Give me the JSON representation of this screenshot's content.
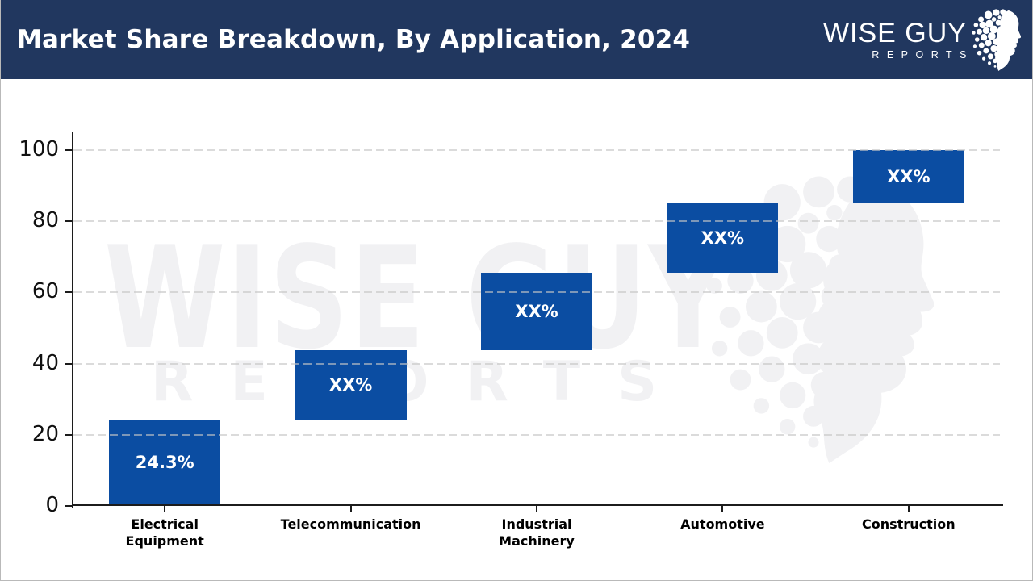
{
  "header": {
    "title": "Market Share Breakdown, By Application, 2024",
    "logo": {
      "brand": "WISE GUY",
      "sub": "REPORTS"
    }
  },
  "watermark": {
    "brand": "WISE GUY",
    "sub": "REPORTS"
  },
  "colors": {
    "header_bg": "#21375f",
    "bar": "#0b4da2",
    "axis": "#1c1c1c",
    "grid": "#dcdcdc",
    "value_label": "#ffffff",
    "watermark": "#f1f1f3"
  },
  "chart_data": {
    "type": "bar",
    "subtype": "floating-segment-waterfall",
    "title": "Market Share Breakdown, By Application, 2024",
    "categories": [
      "Electrical Equipment",
      "Telecommunication",
      "Industrial Machinery",
      "Automotive",
      "Construction"
    ],
    "category_tick_lines": [
      [
        "Electrical",
        "Equipment"
      ],
      [
        "Telecommunication"
      ],
      [
        "Industrial",
        "Machinery"
      ],
      [
        "Automotive"
      ],
      [
        "Construction"
      ]
    ],
    "series": [
      {
        "name": "Market share (%)",
        "segments": [
          {
            "category": "Electrical Equipment",
            "start": 0,
            "end": 24.3,
            "label": "24.3%"
          },
          {
            "category": "Telecommunication",
            "start": 24.3,
            "end": 43.7,
            "label": "XX%"
          },
          {
            "category": "Industrial Machinery",
            "start": 43.7,
            "end": 65.5,
            "label": "XX%"
          },
          {
            "category": "Automotive",
            "start": 65.5,
            "end": 85.0,
            "label": "XX%"
          },
          {
            "category": "Construction",
            "start": 85.0,
            "end": 100.0,
            "label": "XX%"
          }
        ]
      }
    ],
    "ylim": [
      0,
      100
    ],
    "yticks": [
      0,
      20,
      40,
      60,
      80,
      100
    ],
    "xlabel": "",
    "ylabel": "",
    "grid": "horizontal-dashed",
    "legend": "none",
    "bar_color": "#0b4da2",
    "value_label_color": "#ffffff"
  }
}
